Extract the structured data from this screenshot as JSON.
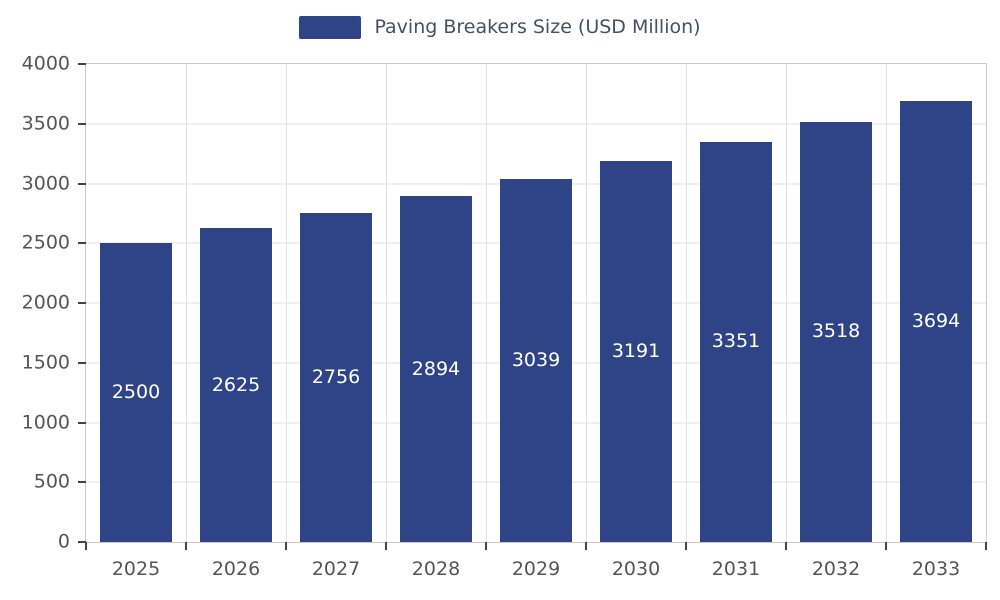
{
  "chart_data": {
    "type": "bar",
    "title": "Paving Breakers Size (USD Million)",
    "categories": [
      "2025",
      "2026",
      "2027",
      "2028",
      "2029",
      "2030",
      "2031",
      "2032",
      "2033"
    ],
    "values": [
      2500,
      2625,
      2756,
      2894,
      3039,
      3191,
      3351,
      3518,
      3694
    ],
    "xlabel": "",
    "ylabel": "",
    "ylim": [
      0,
      4000
    ],
    "ytick_step": 500,
    "grid": true,
    "legend_position": "top",
    "legend": [
      {
        "label": "Paving Breakers Size (USD Million)"
      }
    ],
    "colors": {
      "bar": "#2F4487",
      "grid": "#e0e0e0",
      "axis_border": "#c9c9c9",
      "tick": "#444444",
      "tick_label": "#555555",
      "title_text": "#475063",
      "value_label": "#ffffff",
      "background": "#ffffff"
    }
  }
}
